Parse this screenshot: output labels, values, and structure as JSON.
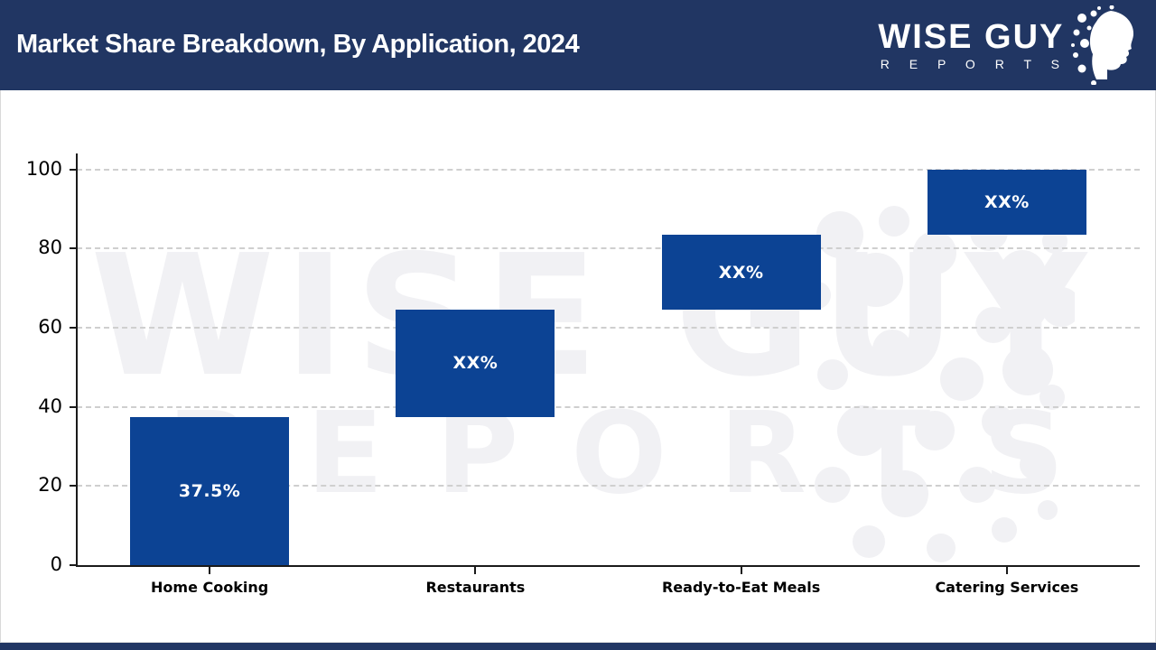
{
  "header": {
    "title": "Market Share Breakdown, By Application, 2024",
    "logo": {
      "line1": "WISE GUY",
      "line2": "R E P O R T S"
    }
  },
  "watermark": {
    "line1": "WISE GUY",
    "line2": "REPORTS"
  },
  "chart_data": {
    "type": "bar",
    "subtype": "floating-waterfall",
    "title": "Market Share Breakdown, By Application, 2024",
    "categories": [
      "Home Cooking",
      "Restaurants",
      "Ready-to-Eat Meals",
      "Catering Services"
    ],
    "series": [
      {
        "name": "Market Share",
        "segments": [
          {
            "category": "Home Cooking",
            "start": 0,
            "end": 37.5,
            "label": "37.5%"
          },
          {
            "category": "Restaurants",
            "start": 37.5,
            "end": 64.5,
            "label": "XX%"
          },
          {
            "category": "Ready-to-Eat Meals",
            "start": 64.5,
            "end": 83.5,
            "label": "XX%"
          },
          {
            "category": "Catering Services",
            "start": 83.5,
            "end": 100,
            "label": "XX%"
          }
        ]
      }
    ],
    "xlabel": "",
    "ylabel": "",
    "ylim": [
      0,
      100
    ],
    "yticks": [
      0,
      20,
      40,
      60,
      80,
      100
    ],
    "legend": "none",
    "grid": "dashed-horizontal"
  },
  "colors": {
    "header_navy": "#213663",
    "bar_blue": "#0c4394",
    "bar_label": "#ffffff",
    "watermark": "#f1f1f4",
    "gridline": "#cfcfcf",
    "axis": "#1a1a1a",
    "card_border": "#d9d9d9"
  }
}
